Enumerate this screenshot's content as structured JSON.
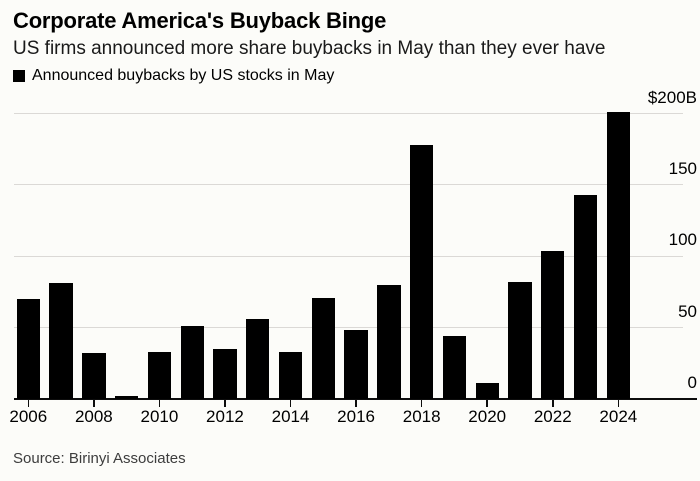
{
  "header": {
    "title": "Corporate America's Buyback Binge",
    "subtitle": "US firms announced more share buybacks in May than they ever have"
  },
  "legend": {
    "label": "Announced buybacks by US stocks in May"
  },
  "source": {
    "label": "Source: Birinyi Associates"
  },
  "colors": {
    "bar": "#000000",
    "grid": "#dbd9d6",
    "axis": "#0d0d0d",
    "background": "#fcfcf9",
    "source_text": "#3d3d3d"
  },
  "chart_data": {
    "type": "bar",
    "title": "Corporate America's Buyback Binge",
    "subtitle": "US firms announced more share buybacks in May than they ever have",
    "legend_entries": [
      "Announced buybacks by US stocks in May"
    ],
    "unit": "billions of US dollars",
    "categories": [
      "2006",
      "2007",
      "2008",
      "2009",
      "2010",
      "2011",
      "2012",
      "2013",
      "2014",
      "2015",
      "2016",
      "2017",
      "2018",
      "2019",
      "2020",
      "2021",
      "2022",
      "2023",
      "2024"
    ],
    "values": [
      70,
      81,
      32,
      2,
      33,
      51,
      35,
      56,
      33,
      71,
      48,
      80,
      178,
      44,
      11,
      82,
      104,
      143,
      201
    ],
    "ylim": [
      0,
      200
    ],
    "yticks": [
      0,
      50,
      100,
      150,
      200
    ],
    "ytick_labels": [
      "0",
      "50",
      "100",
      "150",
      "$200B"
    ],
    "xtick_labels": [
      "2006",
      "2008",
      "2010",
      "2012",
      "2014",
      "2016",
      "2018",
      "2020",
      "2022",
      "2024"
    ],
    "grid": true,
    "legend_position": "top-left",
    "y_axis_side": "right",
    "source": "Source: Birinyi Associates"
  }
}
